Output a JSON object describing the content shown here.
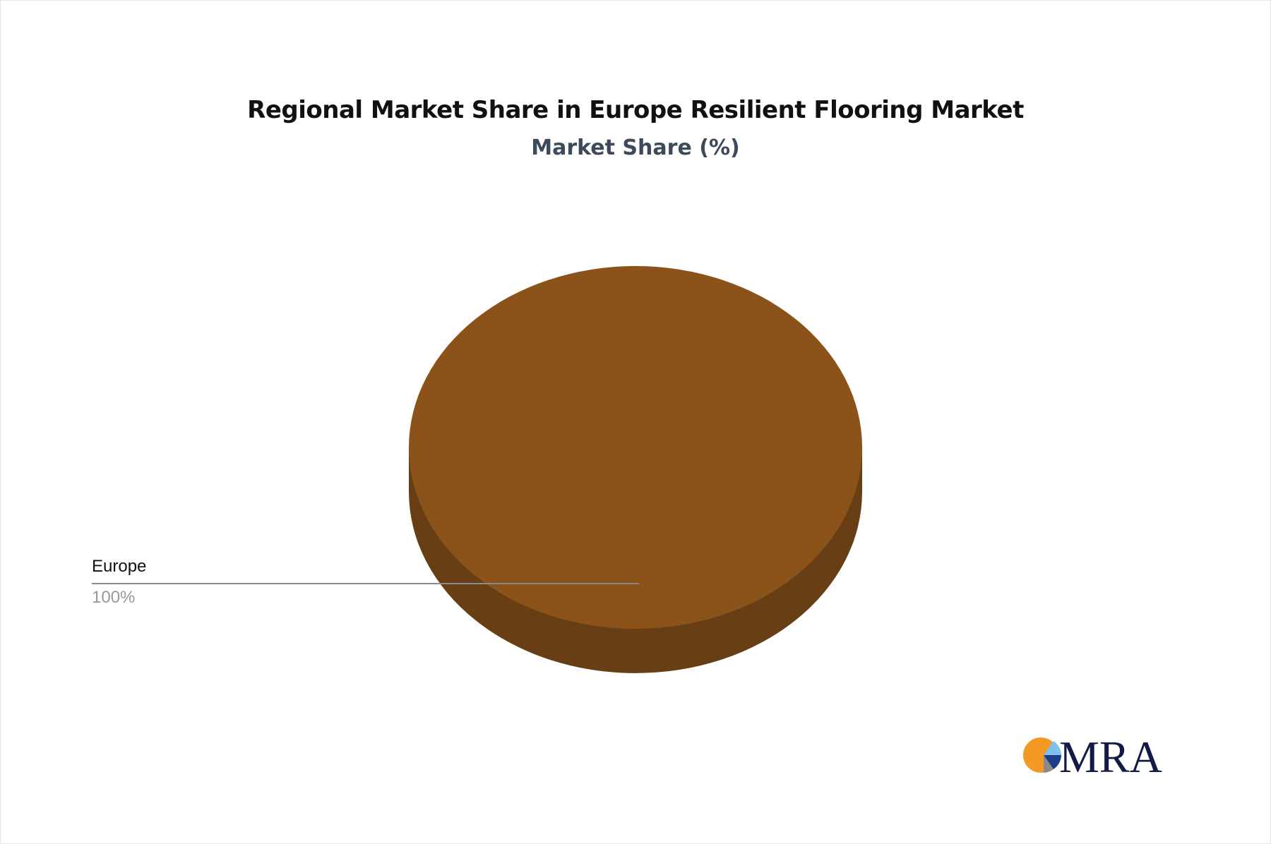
{
  "chart_data": {
    "type": "pie",
    "style": "3d",
    "title": "Regional Market Share in Europe Resilient Flooring Market",
    "subtitle": "Market Share (%)",
    "slices": [
      {
        "label": "Europe",
        "value": 100,
        "display": "100%",
        "color": "#8b5319",
        "side_color": "#683f14"
      }
    ],
    "legend": "none"
  },
  "logo": {
    "text": "MRA",
    "colors": {
      "orange": "#f39a24",
      "navy": "#121a45",
      "light_blue": "#7fc1ec",
      "blue": "#1c3f8c",
      "gray": "#8a8a8a"
    }
  }
}
